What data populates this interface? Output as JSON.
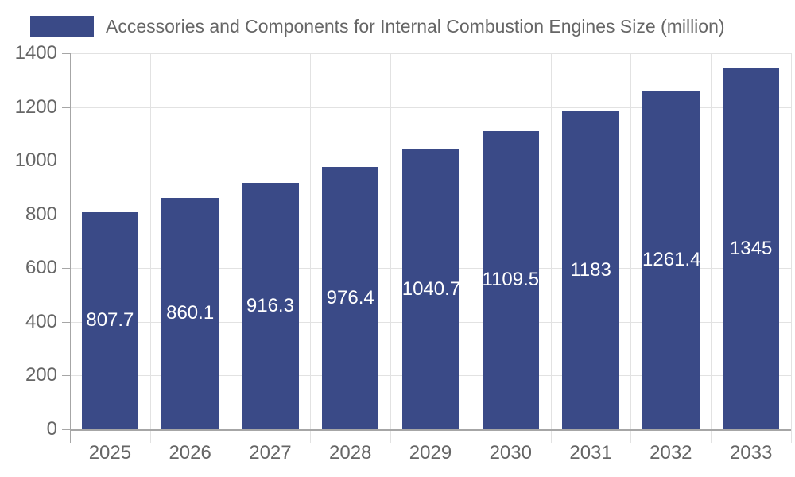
{
  "legend": {
    "label": "Accessories and Components for Internal Combustion Engines Size (million)"
  },
  "chart_data": {
    "type": "bar",
    "title": "",
    "xlabel": "",
    "ylabel": "",
    "legend_position": "top-left",
    "grid": true,
    "categories": [
      "2025",
      "2026",
      "2027",
      "2028",
      "2029",
      "2030",
      "2031",
      "2032",
      "2033"
    ],
    "series": [
      {
        "name": "Accessories and Components for Internal Combustion Engines Size (million)",
        "values": [
          807.7,
          860.1,
          916.3,
          976.4,
          1040.7,
          1109.5,
          1183,
          1261.4,
          1345
        ],
        "labels": [
          "807.7",
          "860.1",
          "916.3",
          "976.4",
          "1040.7",
          "1109.5",
          "1183",
          "1261.4",
          "1345"
        ]
      }
    ],
    "ylim": [
      0,
      1400
    ],
    "yticks": [
      "0",
      "200",
      "400",
      "600",
      "800",
      "1000",
      "1200",
      "1400"
    ],
    "colors": {
      "bar": "#3A4A87",
      "bar_label": "#FFFFFF",
      "axis_label": "#666666",
      "legend_text": "#666666",
      "grid_line": "#E2E2E2",
      "axis_line": "#A6A6A6",
      "background": "#FFFFFF"
    }
  }
}
